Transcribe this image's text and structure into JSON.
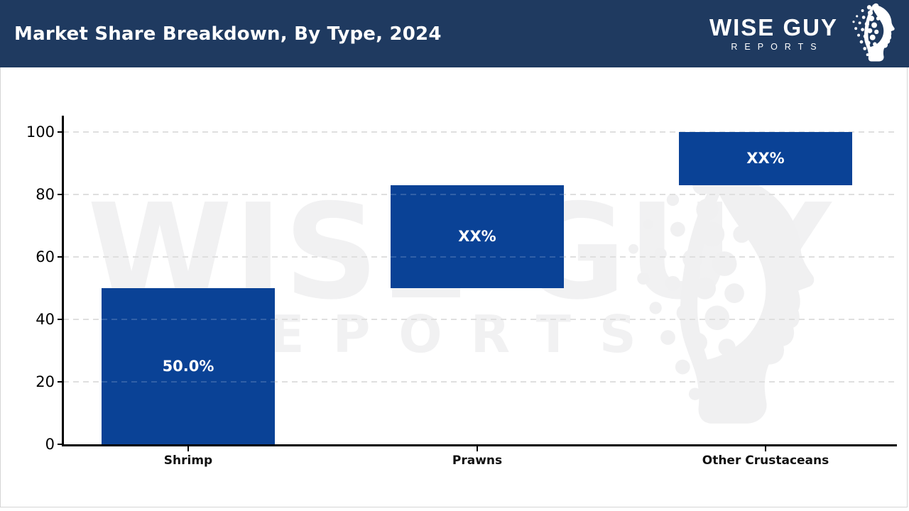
{
  "header": {
    "title": "Market Share Breakdown, By Type, 2024",
    "logo": {
      "line1": "WISE GUY",
      "line2": "REPORTS"
    }
  },
  "watermark": {
    "line1": "WISE GUY",
    "line2": "REPORTS"
  },
  "chart_data": {
    "type": "bar",
    "subtype": "waterfall",
    "title": "Market Share Breakdown, By Type, 2024",
    "categories": [
      "Shrimp",
      "Prawns",
      "Other Crustaceans"
    ],
    "segments": [
      {
        "category": "Shrimp",
        "start": 0,
        "end": 50,
        "label": "50.0%"
      },
      {
        "category": "Prawns",
        "start": 50,
        "end": 83,
        "label": "XX%"
      },
      {
        "category": "Other Crustaceans",
        "start": 83,
        "end": 100,
        "label": "XX%"
      }
    ],
    "ylim": [
      0,
      100
    ],
    "yticks": [
      0,
      20,
      40,
      60,
      80,
      100
    ],
    "xlabel": "",
    "ylabel": "",
    "grid": "dashed-horizontal",
    "legend": "none",
    "bar_color": "#0a4296",
    "bar_label_color": "#ffffff",
    "grid_color": "#dfdfdf",
    "axis_color": "#000000"
  },
  "colors": {
    "header_bg": "#1f3a60",
    "header_text": "#ffffff",
    "watermark": "#f1f1f2",
    "page_bg": "#ffffff",
    "frame_border": "#d5d5d5"
  }
}
